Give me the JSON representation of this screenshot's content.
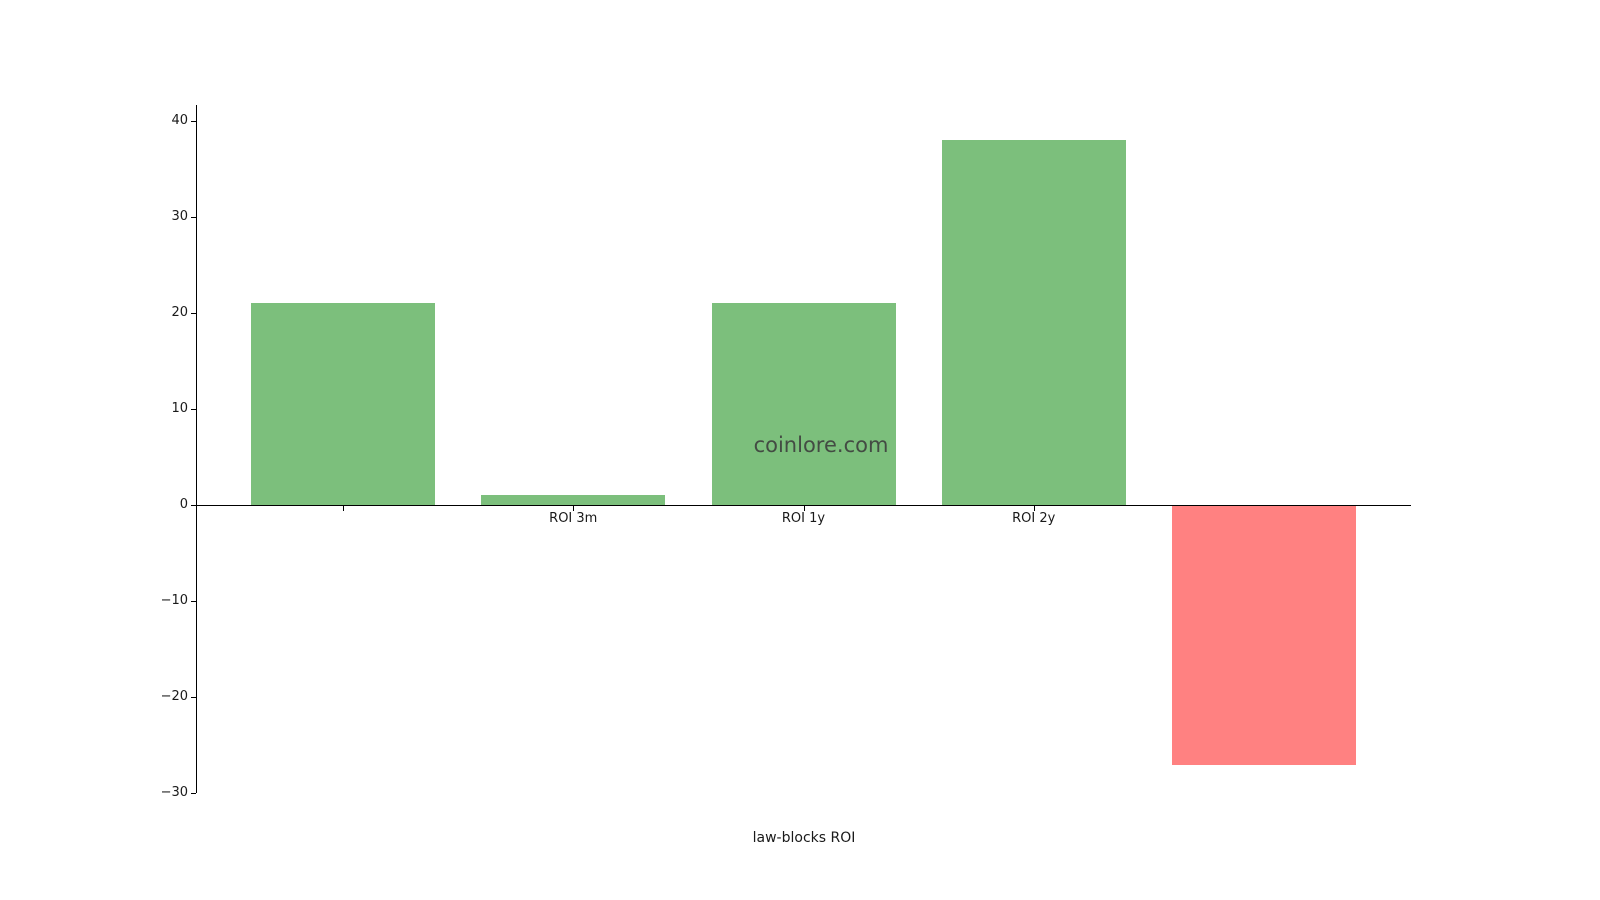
{
  "page": {
    "background": "#ffffff"
  },
  "watermark": {
    "text": "coinlore.com",
    "color": "#3c3c3c"
  },
  "chart_data": {
    "type": "bar",
    "title": "",
    "xlabel": "law-blocks ROI",
    "ylabel": "",
    "categories": [
      "",
      "ROI 3m",
      "ROI 1y",
      "ROI 2y",
      ""
    ],
    "values": [
      21,
      1,
      21,
      38,
      -27
    ],
    "series": [
      {
        "name": "law-blocks ROI (%)",
        "values": [
          21,
          1,
          21,
          38,
          -27
        ]
      }
    ],
    "yticks": [
      40,
      30,
      20,
      10,
      0,
      -10,
      -20,
      -30
    ],
    "ytick_labels": [
      "40",
      "30",
      "20",
      "10",
      "0",
      "−10",
      "−20",
      "−30"
    ],
    "ylim": [
      -30,
      42
    ],
    "grid": false,
    "legend": false,
    "positive_color": "#7cbf7c",
    "negative_color": "#ff8181",
    "bar_colors": [
      "#7cbf7c",
      "#7cbf7c",
      "#7cbf7c",
      "#7cbf7c",
      "#ff8181"
    ],
    "axis_color": "#000000",
    "tick_label_color": "#1a1a1a"
  }
}
